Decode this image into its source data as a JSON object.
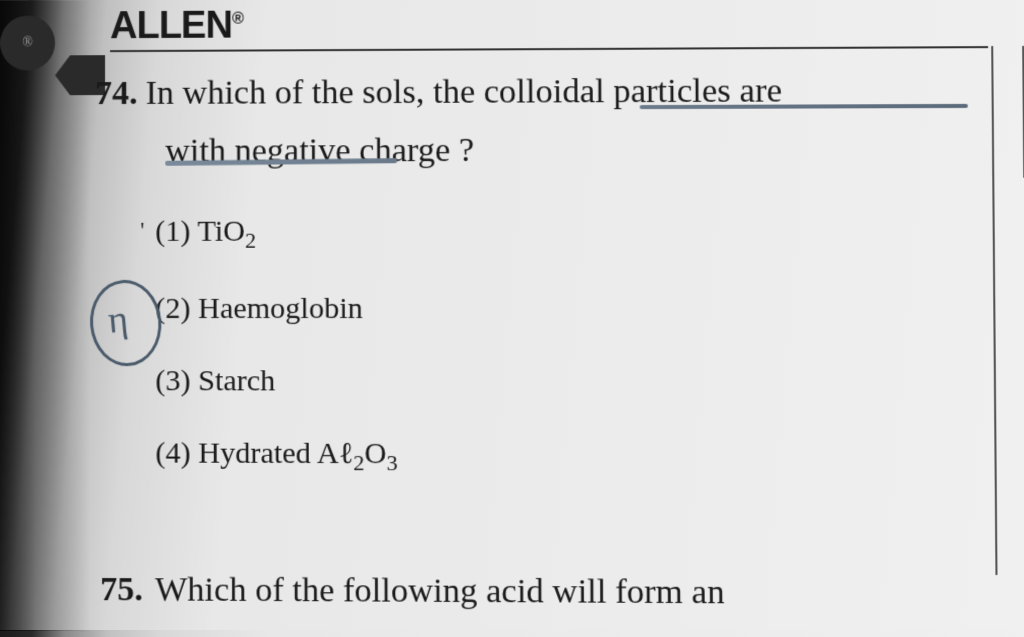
{
  "brand": {
    "name": "ALLEN",
    "reg": "®"
  },
  "question74": {
    "number": "74.",
    "line1": "In which of the sols, the colloidal particles are",
    "line2": "with negative charge ?",
    "options": {
      "opt1_num": "(1)",
      "opt1_text": "TiO",
      "opt1_sub": "2",
      "opt2": "(2) Haemoglobin",
      "opt3": "(3) Starch",
      "opt4_num": "(4)",
      "opt4_text": "Hydrated A",
      "opt4_ell": "ℓ",
      "opt4_sub1": "2",
      "opt4_o": "O",
      "opt4_sub2": "3"
    }
  },
  "question75": {
    "number": "75.",
    "text": "Which of the following acid will form an"
  },
  "partial": "7",
  "annotation": "η",
  "colors": {
    "text": "#1a1a1a",
    "underline": "#6a7a8a",
    "circle": "#4a5a6a"
  }
}
